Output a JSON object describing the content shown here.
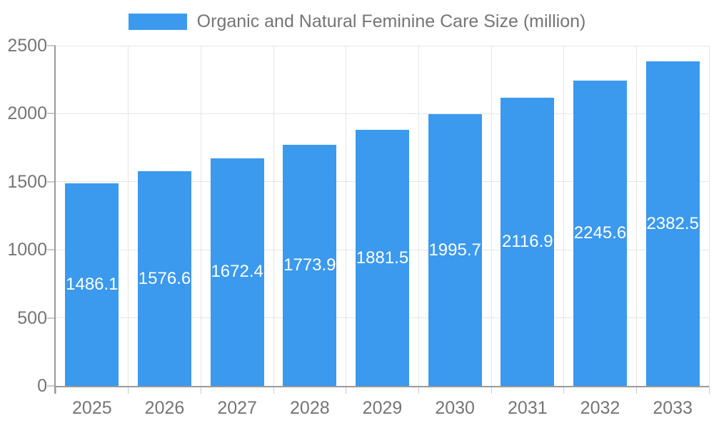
{
  "chart_data": {
    "type": "bar",
    "title": "Organic and Natural Feminine Care Size (million)",
    "categories": [
      "2025",
      "2026",
      "2027",
      "2028",
      "2029",
      "2030",
      "2031",
      "2032",
      "2033"
    ],
    "values": [
      1486.1,
      1576.6,
      1672.4,
      1773.9,
      1881.5,
      1995.7,
      2116.9,
      2245.6,
      2382.5
    ],
    "value_labels": [
      "1486.1",
      "1576.6",
      "1672.4",
      "1773.9",
      "1881.5",
      "1995.7",
      "2116.9",
      "2245.6",
      "2382.5"
    ],
    "xlabel": "",
    "ylabel": "",
    "ylim": [
      0,
      2500
    ],
    "yticks": [
      "0",
      "500",
      "1000",
      "1500",
      "2000",
      "2500"
    ],
    "grid": true,
    "legend_position": "top",
    "colors": {
      "bar": "#3b99ee",
      "axis_line": "#999999",
      "tick_mark": "#c9c9c9",
      "gridline": "#e6e6e6",
      "axis_text": "#757575",
      "legend_text": "#757575",
      "value_label_text": "#ffffff",
      "background": "#ffffff"
    }
  }
}
